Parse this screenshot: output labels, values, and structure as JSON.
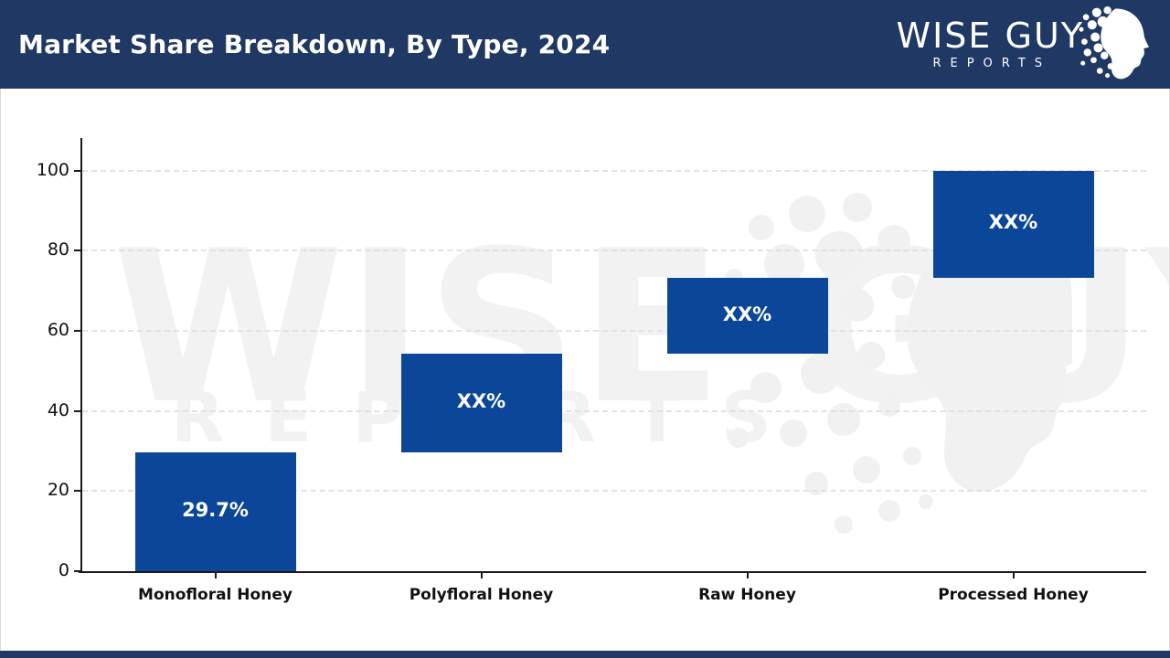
{
  "header": {
    "title": "Market Share Breakdown, By Type, 2024",
    "brand": {
      "line1": "WISE GUY",
      "line2": "REPORTS"
    }
  },
  "watermark": {
    "line1": "WISE GUY",
    "line2": "REPORTS"
  },
  "footer": {},
  "colors": {
    "header_bg": "#1f3864",
    "footer_bg": "#1f3864",
    "bar": "#0b4699",
    "bar_value_text": "#ffffff",
    "grid": "#e2e2e2",
    "axis": "#1a1a1a",
    "watermark": "#f2f2f2"
  },
  "chart_data": {
    "type": "bar",
    "subtype": "floating-waterfall",
    "title": "Market Share Breakdown, By Type, 2024",
    "xlabel": "",
    "ylabel": "",
    "categories": [
      "Monofloral Honey",
      "Polyfloral Honey",
      "Raw Honey",
      "Processed Honey"
    ],
    "bars": [
      {
        "category": "Monofloral Honey",
        "start": 0,
        "end": 29.7,
        "label": "29.7%"
      },
      {
        "category": "Polyfloral Honey",
        "start": 29.7,
        "end": 54.3,
        "label": "XX%"
      },
      {
        "category": "Raw Honey",
        "start": 54.3,
        "end": 73.2,
        "label": "XX%"
      },
      {
        "category": "Processed Honey",
        "start": 73.2,
        "end": 100,
        "label": "XX%"
      }
    ],
    "yticks": [
      0,
      20,
      40,
      60,
      80,
      100
    ],
    "ylim": [
      0,
      108
    ],
    "grid": "horizontal-dashed",
    "legend": "none",
    "bar_color": "#0b4699"
  }
}
